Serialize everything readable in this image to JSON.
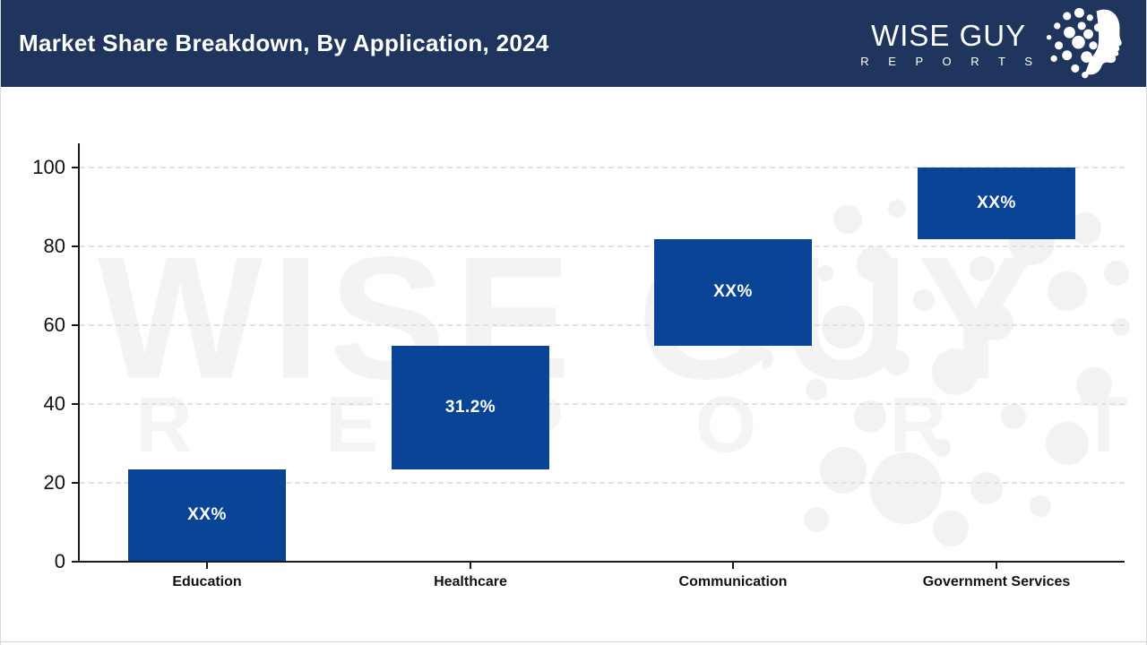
{
  "header": {
    "title": "Market Share Breakdown, By Application, 2024",
    "logo": {
      "line1": "WISE GUY",
      "line2": "R E P O R T S"
    }
  },
  "watermark": {
    "line1": "WISE GUY",
    "line2": "R E P O R T S"
  },
  "colors": {
    "header_bg": "#20355e",
    "bar": "#0a4496",
    "bar_label": "#ffffff",
    "axis": "#1a1a1a",
    "grid": "#e2e2e2",
    "watermark": "#f3f3f4"
  },
  "chart_data": {
    "type": "bar",
    "subtype": "floating-waterfall",
    "title": "Market Share Breakdown, By Application, 2024",
    "categories": [
      "Education",
      "Healthcare",
      "Communication",
      "Government Services"
    ],
    "series": [
      {
        "name": "Market Share (%)",
        "segments": [
          {
            "category": "Education",
            "start": 0,
            "end": 23.5,
            "label": "XX%"
          },
          {
            "category": "Healthcare",
            "start": 23.5,
            "end": 54.7,
            "label": "31.2%"
          },
          {
            "category": "Communication",
            "start": 54.7,
            "end": 81.9,
            "label": "XX%"
          },
          {
            "category": "Government Services",
            "start": 81.9,
            "end": 100,
            "label": "XX%"
          }
        ]
      }
    ],
    "xlabel": "",
    "ylabel": "",
    "ylim": [
      0,
      100
    ],
    "yticks": [
      0,
      20,
      40,
      60,
      80,
      100
    ],
    "grid": "horizontal-dashed",
    "legend": "none",
    "bar_color": "#0a4496"
  }
}
